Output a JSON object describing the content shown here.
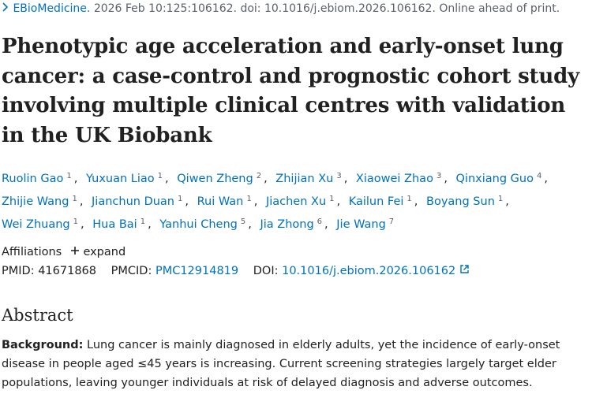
{
  "citation": {
    "journal": "EBioMedicine.",
    "details": "2026 Feb 10:125:106162. doi: 10.1016/j.ebiom.2026.106162. Online ahead of print."
  },
  "title": "Phenotypic age acceleration and early-onset lung cancer: a case-control and prognostic cohort study involving multiple clinical centres with validation in the UK Biobank",
  "separator": ",",
  "authors": [
    {
      "name": "Ruolin Gao",
      "affil": 1
    },
    {
      "name": "Yuxuan Liao",
      "affil": 1
    },
    {
      "name": "Qiwen Zheng",
      "affil": 2
    },
    {
      "name": "Zhijian Xu",
      "affil": 3
    },
    {
      "name": "Xiaowei Zhao",
      "affil": 3
    },
    {
      "name": "Qinxiang Guo",
      "affil": 4
    },
    {
      "name": "Zhijie Wang",
      "affil": 1
    },
    {
      "name": "Jianchun Duan",
      "affil": 1
    },
    {
      "name": "Rui Wan",
      "affil": 1
    },
    {
      "name": "Jiachen Xu",
      "affil": 1
    },
    {
      "name": "Kailun Fei",
      "affil": 1
    },
    {
      "name": "Boyang Sun",
      "affil": 1
    },
    {
      "name": "Wei Zhuang",
      "affil": 1
    },
    {
      "name": "Hua Bai",
      "affil": 1
    },
    {
      "name": "Yanhui Cheng",
      "affil": 5
    },
    {
      "name": "Jia Zhong",
      "affil": 6
    },
    {
      "name": "Jie Wang",
      "affil": 7
    }
  ],
  "affiliations": {
    "label": "Affiliations",
    "toggle": "expand"
  },
  "identifiers": {
    "pmid_label": "PMID:",
    "pmid": "41671868",
    "pmcid_label": "PMCID:",
    "pmcid": "PMC12914819",
    "doi_label": "DOI:",
    "doi": "10.1016/j.ebiom.2026.106162"
  },
  "abstract": {
    "heading": "Abstract",
    "background_label": "Background:",
    "background_text": "Lung cancer is mainly diagnosed in elderly adults, yet the incidence of early-onset disease in people aged ≤45 years is increasing. Current screening strategies largely target elder populations, leaving younger individuals at risk of delayed diagnosis and adverse outcomes."
  }
}
